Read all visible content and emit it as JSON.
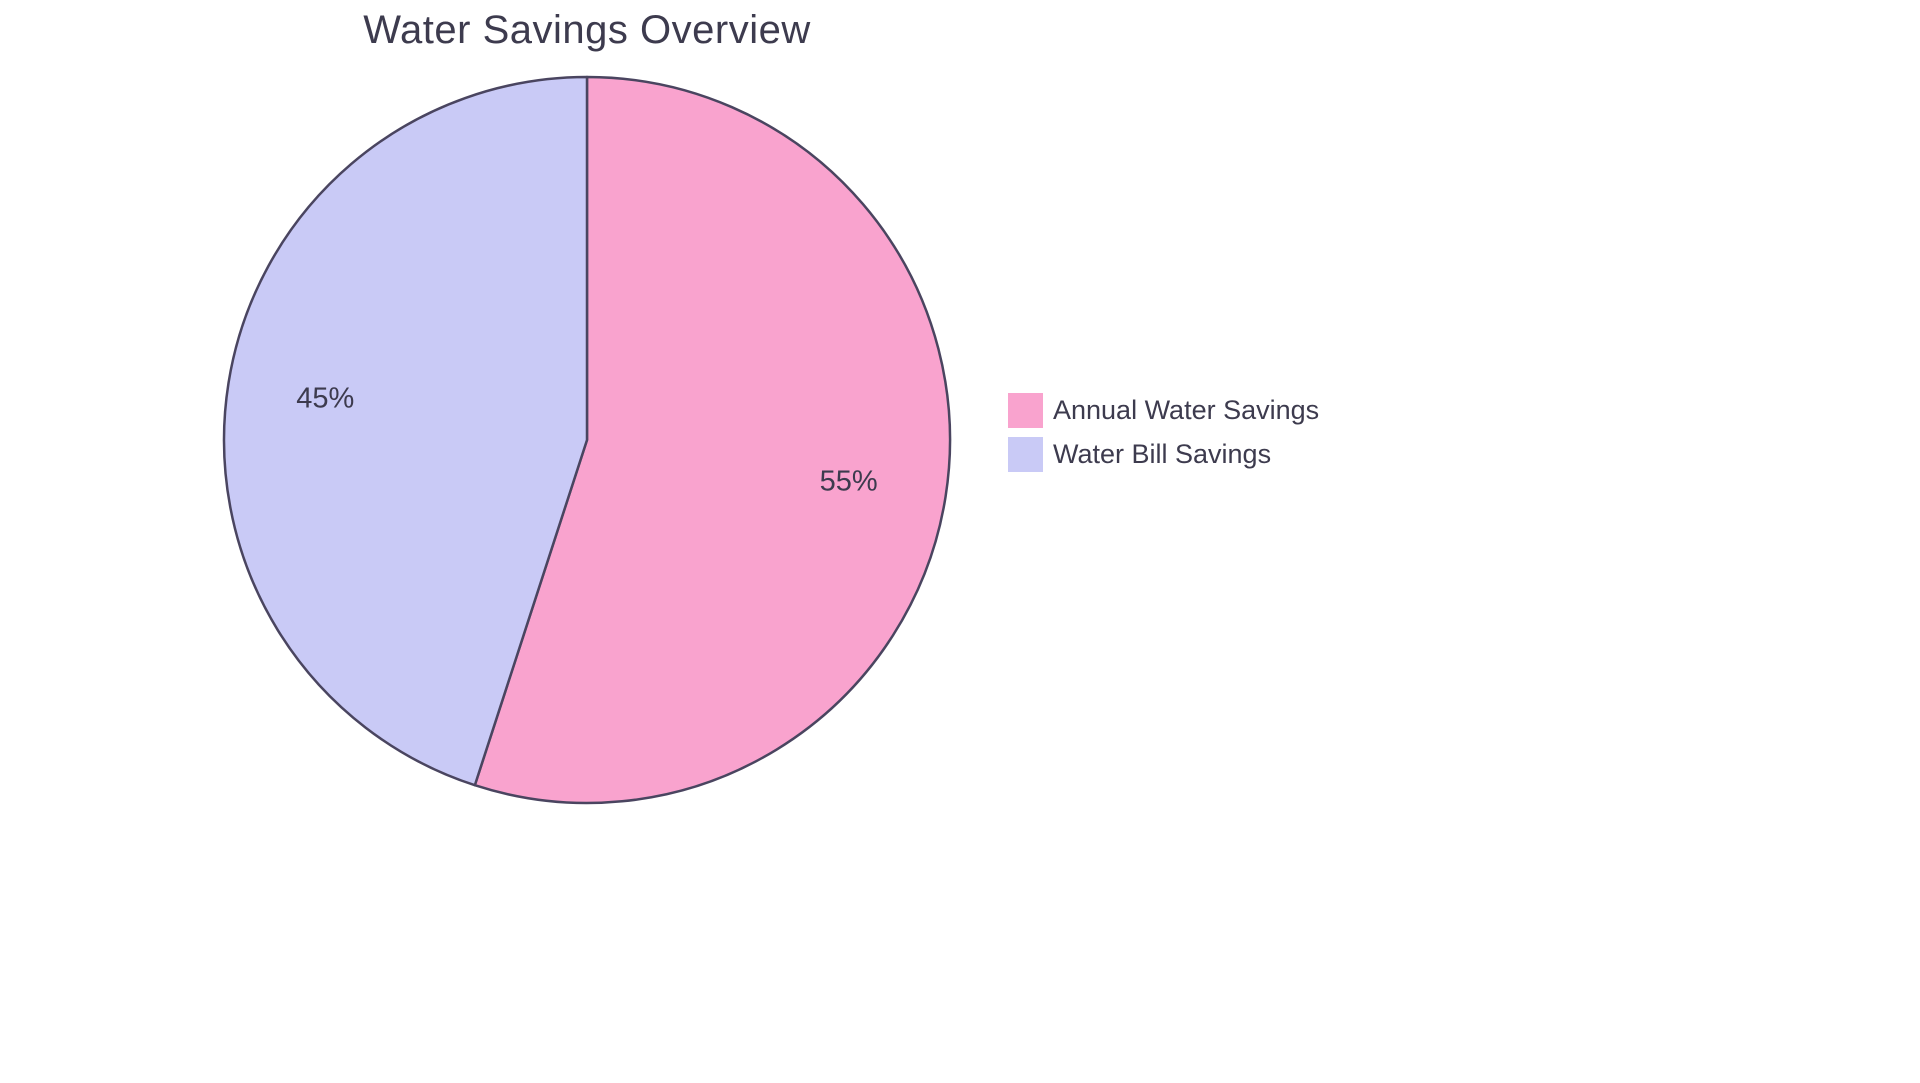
{
  "chart_data": {
    "type": "pie",
    "title": "Water Savings Overview",
    "slices": [
      {
        "label": "Annual Water Savings",
        "value": 55,
        "text": "55%",
        "color": "#F9A3CE"
      },
      {
        "label": "Water Bill Savings",
        "value": 45,
        "text": "45%",
        "color": "#C9CAF6"
      }
    ],
    "start_angle_deg": 0,
    "direction": "clockwise",
    "stroke_color": "#4a4560",
    "stroke_width": 2.5,
    "legend_position": "right",
    "background": "#ffffff"
  }
}
